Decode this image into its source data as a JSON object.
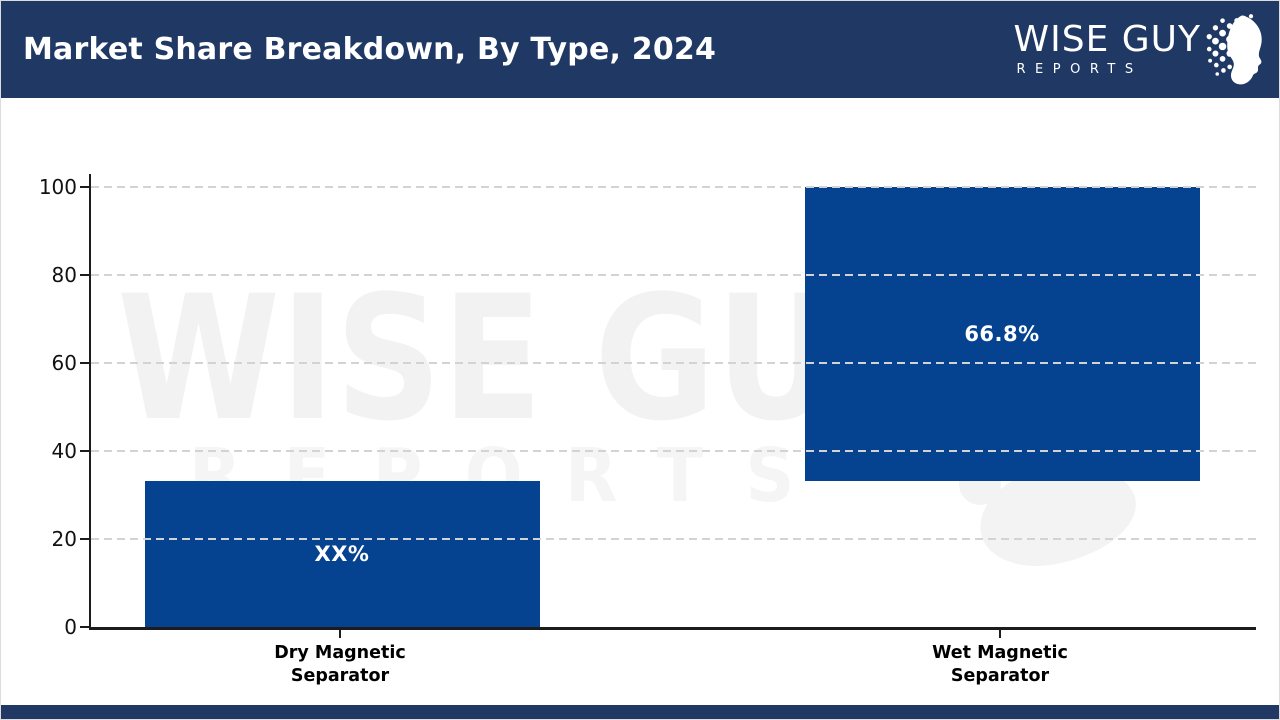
{
  "header": {
    "title": "Market Share Breakdown, By Type, 2024",
    "bg_color": "#1f3864",
    "logo": {
      "wordmark": "WISE GUY",
      "subtext": "REPORTS"
    }
  },
  "watermark": {
    "wordmark": "WISE GUY",
    "subtext": "REPORTS"
  },
  "chart_data": {
    "type": "bar",
    "title": "Market Share Breakdown, By Type, 2024",
    "categories": [
      "Dry Magnetic Separator",
      "Wet Magnetic Separator"
    ],
    "categories_lines": [
      [
        "Dry Magnetic",
        "Separator"
      ],
      [
        "Wet Magnetic",
        "Separator"
      ]
    ],
    "values": [
      33.2,
      66.8
    ],
    "bar_labels": [
      "XX%",
      "66.8%"
    ],
    "bar_segments": [
      {
        "start": 0,
        "end": 33.2
      },
      {
        "start": 33.2,
        "end": 100
      }
    ],
    "style": "waterfall - second bar floats from 33.2 to 100",
    "ylim": [
      0,
      100
    ],
    "yticks": [
      0,
      20,
      40,
      60,
      80,
      100
    ],
    "xlabel": "",
    "ylabel": "",
    "legend": "none",
    "grid": "horizontal dashed, drawn over bars",
    "bar_color": "#05428f",
    "bar_label_color": "#ffffff",
    "axis_color": "#1c1c1c",
    "grid_color": "#d3d3d3"
  },
  "footer": {
    "bg_color": "#1f3864"
  }
}
